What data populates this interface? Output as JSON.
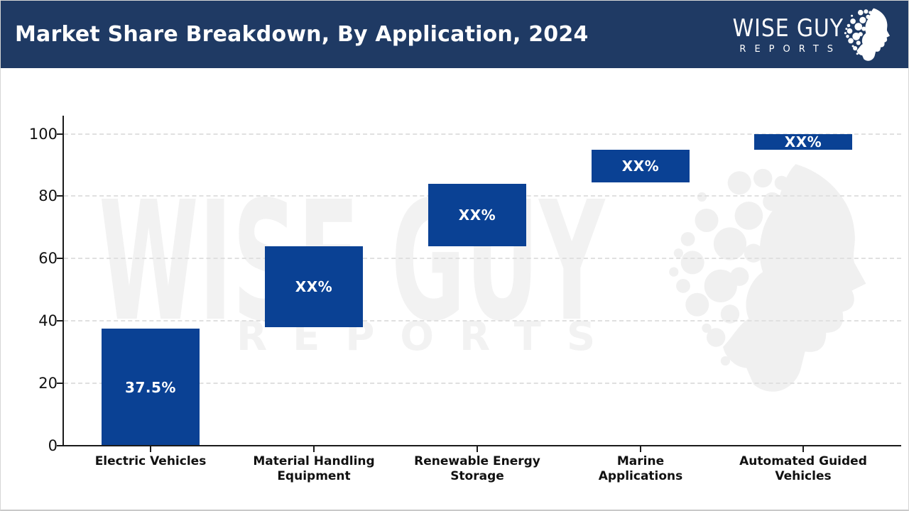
{
  "header": {
    "title": "Market Share Breakdown, By Application, 2024",
    "bg_color": "#1f3a64",
    "logo": {
      "line1": "WISE GUY",
      "line2": "REPORTS"
    }
  },
  "watermark": {
    "line1": "WISE GUY",
    "line2": "REPORTS"
  },
  "chart_data": {
    "type": "bar",
    "subtype": "waterfall",
    "title": "Market Share Breakdown, By Application, 2024",
    "categories": [
      "Electric Vehicles",
      "Material Handling\nEquipment",
      "Renewable Energy\nStorage",
      "Marine\nApplications",
      "Automated Guided\nVehicles"
    ],
    "bars": [
      {
        "category": "Electric Vehicles",
        "base": 0,
        "top": 37.5,
        "label": "37.5%"
      },
      {
        "category": "Material Handling Equipment",
        "base": 38,
        "top": 64,
        "label": "XX%"
      },
      {
        "category": "Renewable Energy Storage",
        "base": 64,
        "top": 84,
        "label": "XX%"
      },
      {
        "category": "Marine Applications",
        "base": 84.5,
        "top": 95,
        "label": "XX%"
      },
      {
        "category": "Automated Guided Vehicles",
        "base": 95,
        "top": 100,
        "label": "XX%"
      }
    ],
    "yticks": [
      0,
      20,
      40,
      60,
      80,
      100
    ],
    "ylim": [
      0,
      105
    ],
    "xlabel": "",
    "ylabel": "",
    "grid": "horizontal-dashed",
    "gridline_color": "#e0e0e0",
    "bar_color": "#0a4194",
    "bar_label_color": "#ffffff",
    "legend": "none"
  }
}
